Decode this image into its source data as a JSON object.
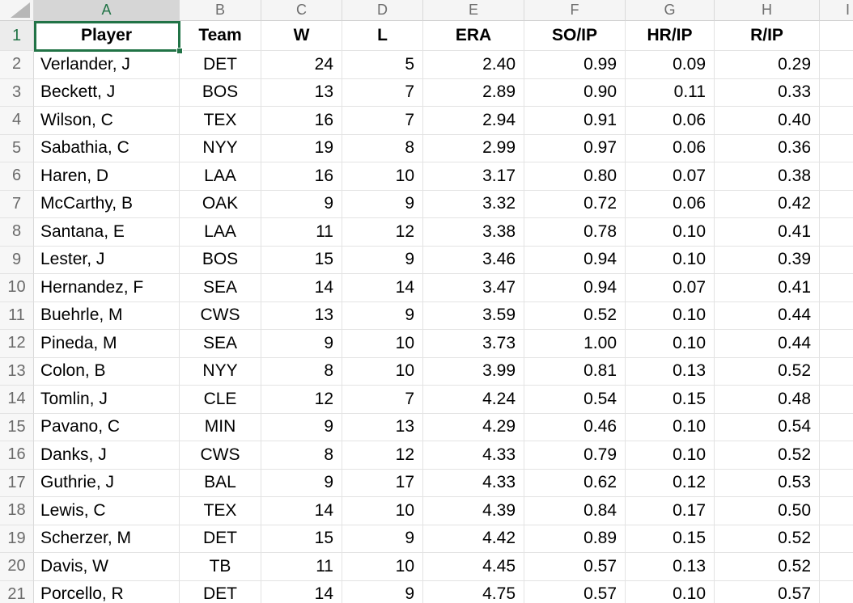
{
  "grid": {
    "column_headers": [
      "A",
      "B",
      "C",
      "D",
      "E",
      "F",
      "G",
      "H",
      "I"
    ],
    "row_numbers": [
      "1",
      "2",
      "3",
      "4",
      "5",
      "6",
      "7",
      "8",
      "9",
      "10",
      "11",
      "12",
      "13",
      "14",
      "15",
      "16",
      "17",
      "18",
      "19",
      "20",
      "21"
    ],
    "selected_cell": "A1",
    "selected_column": "A",
    "selected_row": "1"
  },
  "table": {
    "headers": [
      "Player",
      "Team",
      "W",
      "L",
      "ERA",
      "SO/IP",
      "HR/IP",
      "R/IP"
    ],
    "rows": [
      [
        "Verlander, J",
        "DET",
        "24",
        "5",
        "2.40",
        "0.99",
        "0.09",
        "0.29"
      ],
      [
        "Beckett, J",
        "BOS",
        "13",
        "7",
        "2.89",
        "0.90",
        "0.11",
        "0.33"
      ],
      [
        "Wilson, C",
        "TEX",
        "16",
        "7",
        "2.94",
        "0.91",
        "0.06",
        "0.40"
      ],
      [
        "Sabathia, C",
        "NYY",
        "19",
        "8",
        "2.99",
        "0.97",
        "0.06",
        "0.36"
      ],
      [
        "Haren, D",
        "LAA",
        "16",
        "10",
        "3.17",
        "0.80",
        "0.07",
        "0.38"
      ],
      [
        "McCarthy, B",
        "OAK",
        "9",
        "9",
        "3.32",
        "0.72",
        "0.06",
        "0.42"
      ],
      [
        "Santana, E",
        "LAA",
        "11",
        "12",
        "3.38",
        "0.78",
        "0.10",
        "0.41"
      ],
      [
        "Lester, J",
        "BOS",
        "15",
        "9",
        "3.46",
        "0.94",
        "0.10",
        "0.39"
      ],
      [
        "Hernandez, F",
        "SEA",
        "14",
        "14",
        "3.47",
        "0.94",
        "0.07",
        "0.41"
      ],
      [
        "Buehrle, M",
        "CWS",
        "13",
        "9",
        "3.59",
        "0.52",
        "0.10",
        "0.44"
      ],
      [
        "Pineda, M",
        "SEA",
        "9",
        "10",
        "3.73",
        "1.00",
        "0.10",
        "0.44"
      ],
      [
        "Colon, B",
        "NYY",
        "8",
        "10",
        "3.99",
        "0.81",
        "0.13",
        "0.52"
      ],
      [
        "Tomlin, J",
        "CLE",
        "12",
        "7",
        "4.24",
        "0.54",
        "0.15",
        "0.48"
      ],
      [
        "Pavano, C",
        "MIN",
        "9",
        "13",
        "4.29",
        "0.46",
        "0.10",
        "0.54"
      ],
      [
        "Danks, J",
        "CWS",
        "8",
        "12",
        "4.33",
        "0.79",
        "0.10",
        "0.52"
      ],
      [
        "Guthrie, J",
        "BAL",
        "9",
        "17",
        "4.33",
        "0.62",
        "0.12",
        "0.53"
      ],
      [
        "Lewis, C",
        "TEX",
        "14",
        "10",
        "4.39",
        "0.84",
        "0.17",
        "0.50"
      ],
      [
        "Scherzer, M",
        "DET",
        "15",
        "9",
        "4.42",
        "0.89",
        "0.15",
        "0.52"
      ],
      [
        "Davis, W",
        "TB",
        "11",
        "10",
        "4.45",
        "0.57",
        "0.13",
        "0.52"
      ],
      [
        "Porcello, R",
        "DET",
        "14",
        "9",
        "4.75",
        "0.57",
        "0.10",
        "0.57"
      ]
    ]
  },
  "colors": {
    "selection_green": "#217346",
    "selected_column_header_bg": "#d6d6d6",
    "header_bg": "#f5f5f5",
    "header_text": "#6e6e6e",
    "gridline": "#e3e3e3"
  }
}
